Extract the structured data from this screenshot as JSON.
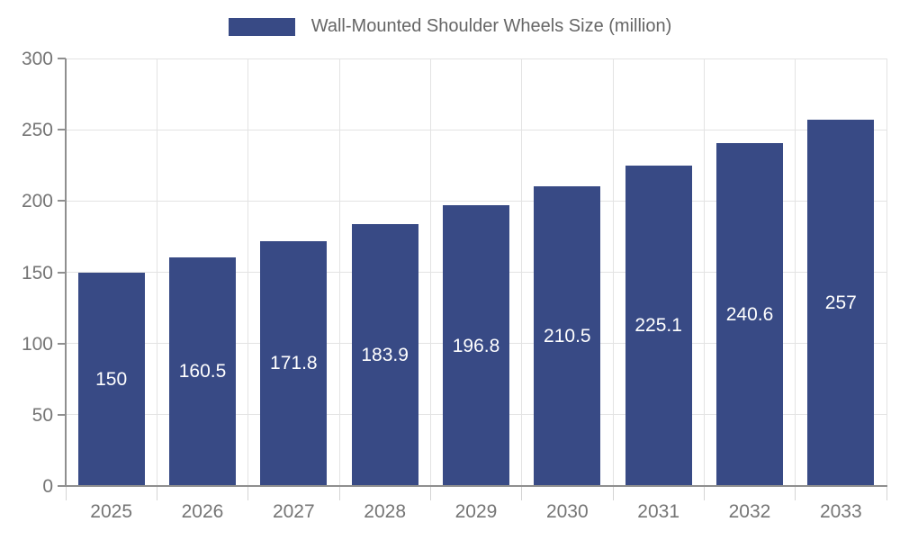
{
  "chart_data": {
    "type": "bar",
    "title": "Wall-Mounted Shoulder Wheels Size (million)",
    "legend_entries": [
      "Wall-Mounted Shoulder Wheels Size (million)"
    ],
    "legend_position": "top-center",
    "categories": [
      "2025",
      "2026",
      "2027",
      "2028",
      "2029",
      "2030",
      "2031",
      "2032",
      "2033"
    ],
    "values": [
      150,
      160.5,
      171.8,
      183.9,
      196.8,
      210.5,
      225.1,
      240.6,
      257
    ],
    "value_labels": [
      "150",
      "160.5",
      "171.8",
      "183.9",
      "196.8",
      "210.5",
      "225.1",
      "240.6",
      "257"
    ],
    "xlabel": "",
    "ylabel": "",
    "ylim": [
      0,
      300
    ],
    "y_ticks": [
      "0",
      "50",
      "100",
      "150",
      "200",
      "250",
      "300"
    ],
    "grid": "on"
  },
  "colors": {
    "bar_fill": "#384A85",
    "bar_label_text": "#FFFFFF",
    "axis_line": "#8F8F8F",
    "gridline": "#E3E3E3",
    "tick_text": "#757575",
    "legend_text": "#666666",
    "background": "#FFFFFF"
  }
}
